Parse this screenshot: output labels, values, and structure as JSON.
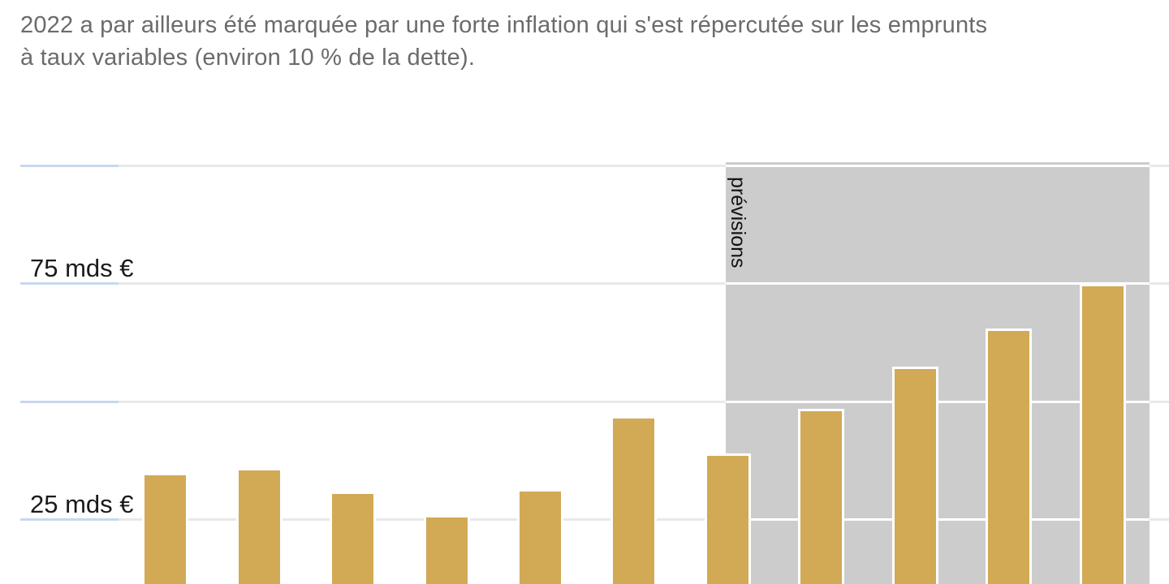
{
  "intro": {
    "lines": [
      "2022 a par ailleurs été marquée par une forte inflation qui s'est répercutée sur les emprunts",
      "à taux variables (environ 10 % de la dette)."
    ]
  },
  "chart_data": {
    "type": "bar",
    "unit": "mds €",
    "values": [
      34.5,
      35.5,
      30.5,
      25.5,
      31,
      46.5,
      38.5,
      48,
      57,
      65,
      74.5
    ],
    "n_bars": 11,
    "axis": {
      "y_gridline_values": [
        100,
        75,
        50,
        25
      ],
      "y_tick_labels": [
        {
          "value": 75,
          "label": "75 mds €"
        },
        {
          "value": 25,
          "label": "25 mds €"
        }
      ],
      "ylim_visible": [
        13,
        102
      ],
      "grid": true,
      "x_tick_labels_visible": false
    },
    "annotation": {
      "label": "prévisions",
      "type": "forecast-region",
      "starts_at_bar_index": 6
    },
    "colors": {
      "bar": "#d2a955",
      "forecast_background": "#cccccc",
      "gridline": "#e9e9e9",
      "gridline_axis_segment": "#c8d7ee",
      "gridline_in_forecast": "#ffffff",
      "intro_text": "#6b6b6b",
      "tick_label": "#1a1a1a",
      "annotation_label": "#111111"
    },
    "legend": null
  }
}
